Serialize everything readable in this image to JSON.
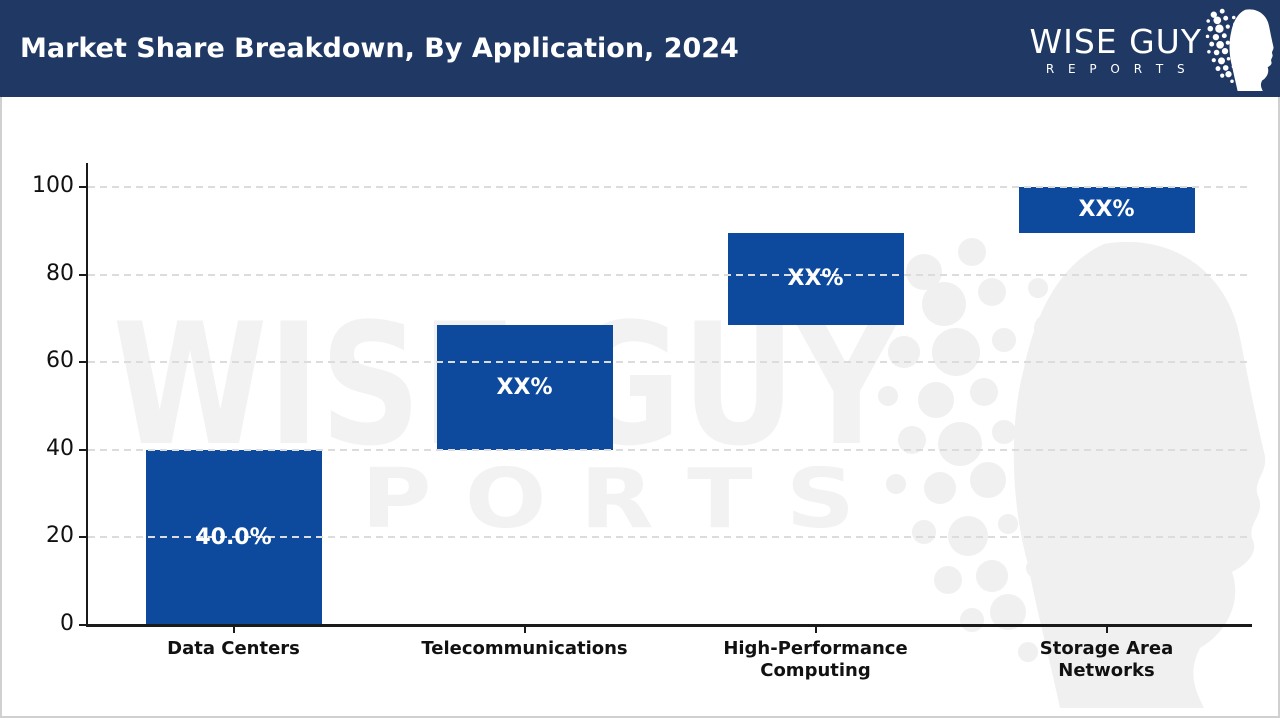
{
  "header": {
    "title": "Market Share Breakdown, By Application, 2024",
    "logo": {
      "line1": "WISE GUY",
      "line2": "R E P O R T S"
    }
  },
  "watermark": {
    "line1": "WISE GUY",
    "line2": "R E P O R T S"
  },
  "colors": {
    "header_bg": "#1f3864",
    "bar": "#0d4a9e",
    "grid": "#dcdcdc",
    "axis": "#1a1a1a",
    "watermark": "#f2f2f2",
    "bar_label": "#ffffff",
    "category_text": "#111111"
  },
  "chart_data": {
    "type": "bar",
    "subtype": "waterfall",
    "title": "Market Share Breakdown, By Application, 2024",
    "xlabel": "",
    "ylabel": "",
    "ylim": [
      0,
      100
    ],
    "yticks": [
      0,
      20,
      40,
      60,
      80,
      100
    ],
    "grid": "horizontal-dashed",
    "legend": "none",
    "categories": [
      "Data Centers",
      "Telecommunications",
      "High-Performance\nComputing",
      "Storage Area\nNetworks"
    ],
    "segments": [
      {
        "category": "Data Centers",
        "start": 0,
        "end": 40,
        "value": 40.0,
        "label": "40.0%"
      },
      {
        "category": "Telecommunications",
        "start": 40,
        "end": 68.5,
        "value": 28.5,
        "label": "XX%"
      },
      {
        "category": "High-Performance Computing",
        "start": 68.5,
        "end": 89.5,
        "value": 21.0,
        "label": "XX%"
      },
      {
        "category": "Storage Area Networks",
        "start": 89.5,
        "end": 100,
        "value": 10.5,
        "label": "XX%"
      }
    ]
  }
}
